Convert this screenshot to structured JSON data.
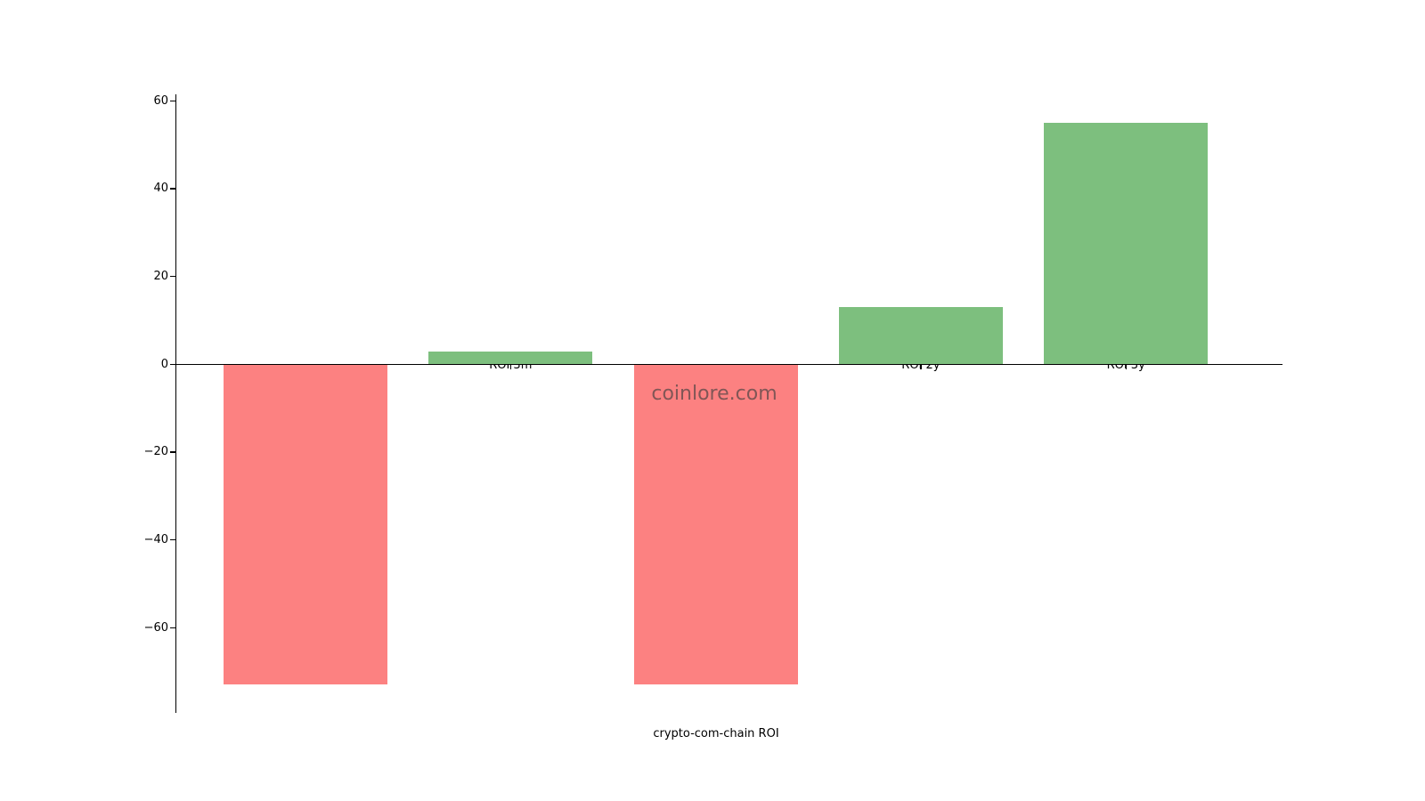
{
  "page": {
    "background_color": "#ffffff"
  },
  "watermark": {
    "text": "coinlore.com",
    "color": "#404040",
    "opacity": 0.65
  },
  "chart_data": {
    "type": "bar",
    "title": "crypto-com-chain ROI",
    "categories": [
      "",
      "ROI 3m",
      "",
      "ROI 2y",
      "ROI 3y"
    ],
    "values": [
      -73,
      3,
      -73,
      13,
      55
    ],
    "positive_color": "#7dbf7e",
    "negative_color": "#fc8181",
    "bar_colors": [
      "#fc8181",
      "#7dbf7e",
      "#fc8181",
      "#7dbf7e",
      "#7dbf7e"
    ],
    "yticks": [
      60,
      40,
      20,
      0,
      -20,
      -40,
      -60
    ],
    "ylim": [
      -79.4,
      61.4
    ],
    "xlabel": "",
    "ylabel": "",
    "grid": false,
    "legend": null,
    "axis_color": "#000000",
    "note": "x tick labels for bars 1 and 3 are hidden behind the red bars"
  }
}
